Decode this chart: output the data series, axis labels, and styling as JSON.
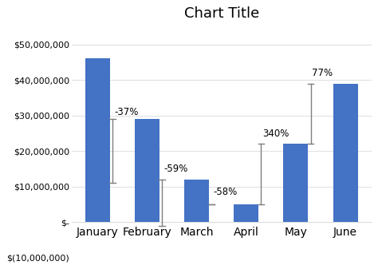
{
  "title": "Chart Title",
  "categories": [
    "January",
    "February",
    "March",
    "April",
    "May",
    "June"
  ],
  "values": [
    46000000,
    29000000,
    12000000,
    5000000,
    22000000,
    39000000
  ],
  "bar_color": "#4472C4",
  "error_bar_color": "#7F7F7F",
  "ylim": [
    -10000000,
    55000000
  ],
  "yticks": [
    -10000000,
    0,
    10000000,
    20000000,
    30000000,
    40000000,
    50000000
  ],
  "ytick_labels": [
    "$(10,000,000)",
    "$-",
    "$10,000,000",
    "$20,000,000",
    "$30,000,000",
    "$40,000,000",
    "$50,000,000"
  ],
  "pct_labels": [
    "-37%",
    "-59%",
    "-58%",
    "340%",
    "77%"
  ],
  "pct_label_bar_indices": [
    0,
    1,
    2,
    3,
    4
  ],
  "error_bar_top": [
    29000000,
    12000000,
    5000000,
    22000000,
    39000000
  ],
  "error_bar_bottom": [
    11000000,
    -1000000,
    5000000,
    5000000,
    22000000
  ],
  "error_bar_indices": [
    0,
    1,
    2,
    3,
    4
  ],
  "background_color": "#ffffff",
  "plot_bg_color": "#ffffff",
  "title_fontsize": 13,
  "tick_fontsize": 8,
  "label_fontsize": 8.5,
  "bar_width": 0.5
}
